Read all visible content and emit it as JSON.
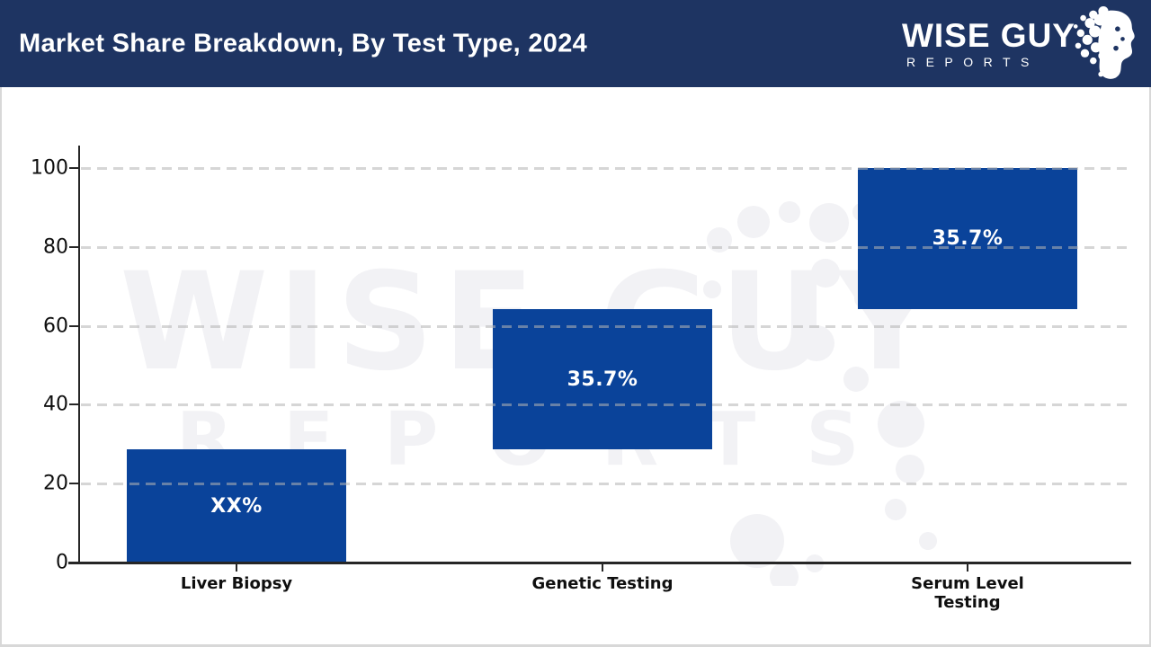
{
  "header": {
    "logo": {
      "brand": "WISE GUY",
      "subtitle": "REPORTS"
    }
  },
  "watermark": {
    "line1": "WISE GUY",
    "line2": "REPORTS"
  },
  "chart_data": {
    "type": "bar",
    "variant": "stacked-breakdown-waterfall",
    "title": "Market Share Breakdown, By Test Type, 2024",
    "categories": [
      "Liver Biopsy",
      "Genetic Testing",
      "Serum Level Testing"
    ],
    "bars": [
      {
        "category": "Liver Biopsy",
        "start": 0,
        "end": 28.6,
        "value_label": "XX%"
      },
      {
        "category": "Genetic Testing",
        "start": 28.6,
        "end": 64.3,
        "value_label": "35.7%"
      },
      {
        "category": "Serum Level Testing",
        "start": 64.3,
        "end": 100,
        "value_label": "35.7%"
      }
    ],
    "y_axis": {
      "ticks": [
        0,
        20,
        40,
        60,
        80,
        100
      ],
      "range": [
        0,
        105
      ]
    },
    "x_label": "",
    "y_label": "",
    "legend": "none",
    "grid": {
      "axis": "y",
      "style": "dashed",
      "over_bars": true
    },
    "colors": {
      "bar": "#0a439a",
      "header_background": "#1e3462",
      "grid_line": "#dcdcdc",
      "axis_line": "#262626",
      "watermark": "#f2f2f5",
      "bar_label_text": "#ffffff"
    }
  }
}
